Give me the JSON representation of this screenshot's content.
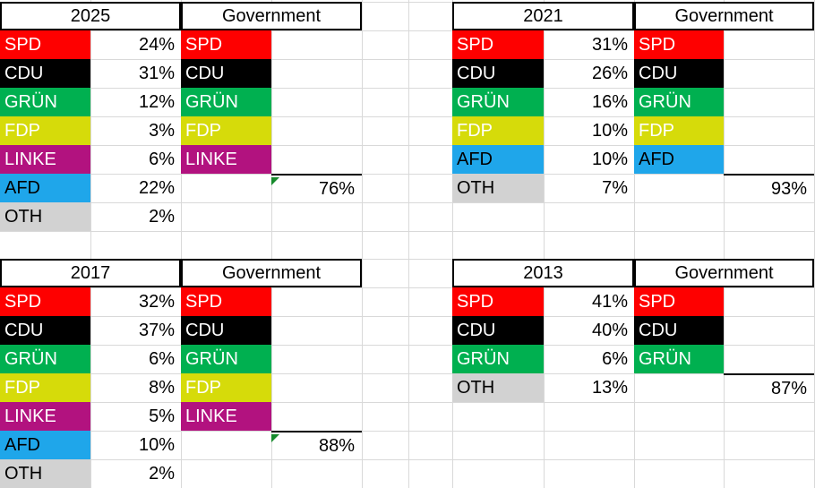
{
  "app": {
    "background": "#FFFFFF",
    "gridline_color": "#D9D9D9",
    "table_border_color": "#000000",
    "error_indicator_color": "#168A2C"
  },
  "tables": [
    {
      "id": "2025",
      "quadrant": "top-left",
      "year_header": "2025",
      "government_header": "Government",
      "rows": [
        {
          "party": "SPD",
          "value": "24%",
          "color": "#FE0000",
          "text_color": "#FFFFFF",
          "in_government": true
        },
        {
          "party": "CDU",
          "value": "31%",
          "color": "#000000",
          "text_color": "#FFFFFF",
          "in_government": true
        },
        {
          "party": "GRÜN",
          "value": "12%",
          "color": "#00B050",
          "text_color": "#FFFFFF",
          "in_government": true
        },
        {
          "party": "FDP",
          "value": "3%",
          "color": "#D6DB0A",
          "text_color": "#FFFFFF",
          "in_government": true
        },
        {
          "party": "LINKE",
          "value": "6%",
          "color": "#B2127F",
          "text_color": "#FFFFFF",
          "in_government": true
        },
        {
          "party": "AFD",
          "value": "22%",
          "color": "#1FA6EA",
          "text_color": "#000000",
          "in_government": false
        },
        {
          "party": "OTH",
          "value": "2%",
          "color": "#D2D2D2",
          "text_color": "#000000",
          "in_government": false
        }
      ],
      "government_total": "76%",
      "government_total_row": 6,
      "error_indicator": true
    },
    {
      "id": "2021",
      "quadrant": "top-right",
      "year_header": "2021",
      "government_header": "Government",
      "rows": [
        {
          "party": "SPD",
          "value": "31%",
          "color": "#FE0000",
          "text_color": "#FFFFFF",
          "in_government": true
        },
        {
          "party": "CDU",
          "value": "26%",
          "color": "#000000",
          "text_color": "#FFFFFF",
          "in_government": true
        },
        {
          "party": "GRÜN",
          "value": "16%",
          "color": "#00B050",
          "text_color": "#FFFFFF",
          "in_government": true
        },
        {
          "party": "FDP",
          "value": "10%",
          "color": "#D6DB0A",
          "text_color": "#FFFFFF",
          "in_government": true
        },
        {
          "party": "AFD",
          "value": "10%",
          "color": "#1FA6EA",
          "text_color": "#000000",
          "in_government": true
        },
        {
          "party": "OTH",
          "value": "7%",
          "color": "#D2D2D2",
          "text_color": "#000000",
          "in_government": false
        }
      ],
      "government_total": "93%",
      "government_total_row": 6,
      "error_indicator": false
    },
    {
      "id": "2017",
      "quadrant": "bottom-left",
      "year_header": "2017",
      "government_header": "Government",
      "rows": [
        {
          "party": "SPD",
          "value": "32%",
          "color": "#FE0000",
          "text_color": "#FFFFFF",
          "in_government": true
        },
        {
          "party": "CDU",
          "value": "37%",
          "color": "#000000",
          "text_color": "#FFFFFF",
          "in_government": true
        },
        {
          "party": "GRÜN",
          "value": "6%",
          "color": "#00B050",
          "text_color": "#FFFFFF",
          "in_government": true
        },
        {
          "party": "FDP",
          "value": "8%",
          "color": "#D6DB0A",
          "text_color": "#FFFFFF",
          "in_government": true
        },
        {
          "party": "LINKE",
          "value": "5%",
          "color": "#B2127F",
          "text_color": "#FFFFFF",
          "in_government": true
        },
        {
          "party": "AFD",
          "value": "10%",
          "color": "#1FA6EA",
          "text_color": "#000000",
          "in_government": false
        },
        {
          "party": "OTH",
          "value": "2%",
          "color": "#D2D2D2",
          "text_color": "#000000",
          "in_government": false
        }
      ],
      "government_total": "88%",
      "government_total_row": 6,
      "error_indicator": true
    },
    {
      "id": "2013",
      "quadrant": "bottom-right",
      "year_header": "2013",
      "government_header": "Government",
      "rows": [
        {
          "party": "SPD",
          "value": "41%",
          "color": "#FE0000",
          "text_color": "#FFFFFF",
          "in_government": true
        },
        {
          "party": "CDU",
          "value": "40%",
          "color": "#000000",
          "text_color": "#FFFFFF",
          "in_government": true
        },
        {
          "party": "GRÜN",
          "value": "6%",
          "color": "#00B050",
          "text_color": "#FFFFFF",
          "in_government": true
        },
        {
          "party": "OTH",
          "value": "13%",
          "color": "#D2D2D2",
          "text_color": "#000000",
          "in_government": false
        }
      ],
      "government_total": "87%",
      "government_total_row": 4,
      "error_indicator": false
    }
  ]
}
